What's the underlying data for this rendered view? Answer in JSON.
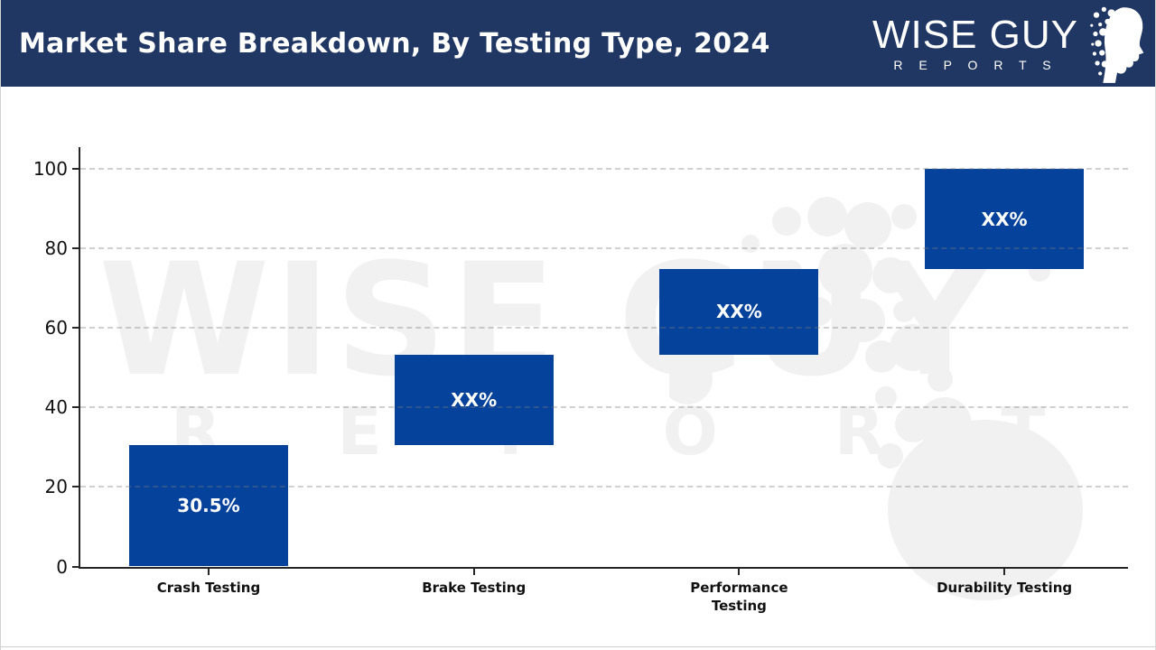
{
  "header": {
    "title": "Market Share Breakdown, By Testing Type, 2024",
    "logo": {
      "brand_line1": "WISE GUY",
      "brand_line2": "R E P O R T S"
    },
    "background_color": "#203764"
  },
  "watermark": {
    "line1": "WISE GUY",
    "line2": "R E P O R T S"
  },
  "chart_data": {
    "type": "bar",
    "variant": "waterfall",
    "title": "Market Share Breakdown, By Testing Type, 2024",
    "categories": [
      "Crash Testing",
      "Brake Testing",
      "Performance Testing",
      "Durability Testing"
    ],
    "segments": [
      {
        "category": "Crash Testing",
        "start": 0,
        "end": 30.5,
        "value": 30.5,
        "label": "30.5%"
      },
      {
        "category": "Brake Testing",
        "start": 30.5,
        "end": 53.3,
        "value": 22.8,
        "label": "XX%"
      },
      {
        "category": "Performance Testing",
        "start": 53.3,
        "end": 74.8,
        "value": 21.5,
        "label": "XX%"
      },
      {
        "category": "Durability Testing",
        "start": 74.8,
        "end": 100,
        "value": 25.2,
        "label": "XX%"
      }
    ],
    "xlabel": "",
    "ylabel": "",
    "yticks": [
      0,
      20,
      40,
      60,
      80,
      100
    ],
    "ylim": [
      0,
      105
    ],
    "grid": {
      "axis": "y",
      "style": "dashed",
      "on": true
    },
    "legend": "none",
    "bar_color": "#05429b",
    "bar_label_color": "#ffffff",
    "axis_color": "#262626",
    "tick_label_color": "#111111"
  }
}
